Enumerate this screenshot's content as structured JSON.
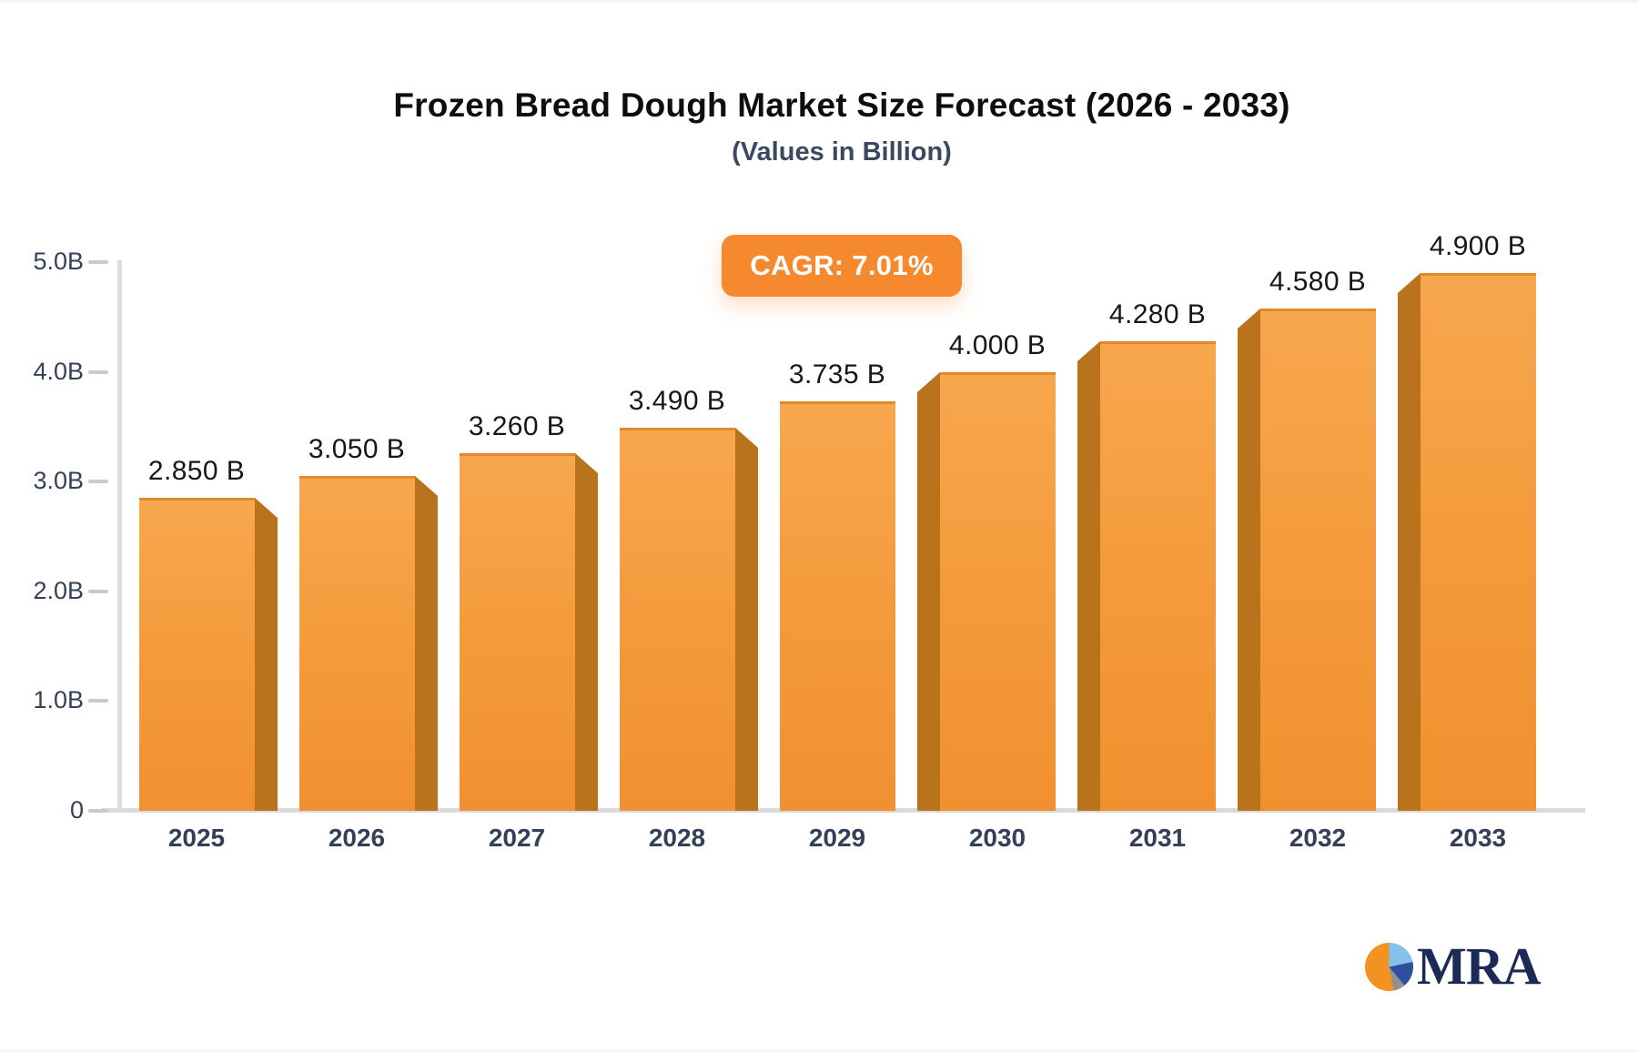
{
  "header": {
    "title": "Frozen Bread Dough Market Size Forecast (2026 - 2033)",
    "subtitle": "(Values in Billion)",
    "cagr_badge": "CAGR: 7.01%"
  },
  "chart_data": {
    "type": "bar",
    "title": "Frozen Bread Dough Market Size Forecast (2026 - 2033)",
    "subtitle": "(Values in Billion)",
    "cagr_annotation": "CAGR: 7.01%",
    "categories": [
      "2025",
      "2026",
      "2027",
      "2028",
      "2029",
      "2030",
      "2031",
      "2032",
      "2033"
    ],
    "values": [
      2.85,
      3.05,
      3.26,
      3.49,
      3.735,
      4.0,
      4.28,
      4.58,
      4.9
    ],
    "value_labels": [
      "2.850 B",
      "3.050 B",
      "3.260 B",
      "3.490 B",
      "3.735 B",
      "4.000 B",
      "4.280 B",
      "4.580 B",
      "4.900 B"
    ],
    "y_tick_values": [
      0,
      1,
      2,
      3,
      4,
      5
    ],
    "y_tick_labels": [
      "0",
      "1.0B",
      "2.0B",
      "3.0B",
      "4.0B",
      "5.0B"
    ],
    "ylim": [
      0,
      5
    ],
    "grid": false,
    "legend": "none",
    "bar_style_3d": true,
    "colors": {
      "bar_face_top": "#F8A74E",
      "bar_face_bottom": "#F19030",
      "bar_side": "#B9731D",
      "bar_top_edge": "#E2892B",
      "axis": "#D9DBDF",
      "tick": "#C7CBD1",
      "axis_label": "#32405A",
      "value_label": "#15171B",
      "badge_bg": "#F6892D",
      "badge_text": "#FFFFFF",
      "title_text": "#0E0E10",
      "subtitle_text": "#3A4961"
    }
  },
  "logo": {
    "text": "MRA",
    "text_color": "#1C2A57",
    "pie_slice_colors": [
      "#F29222",
      "#85C1E9",
      "#2E4F9E",
      "#8E9196"
    ]
  }
}
